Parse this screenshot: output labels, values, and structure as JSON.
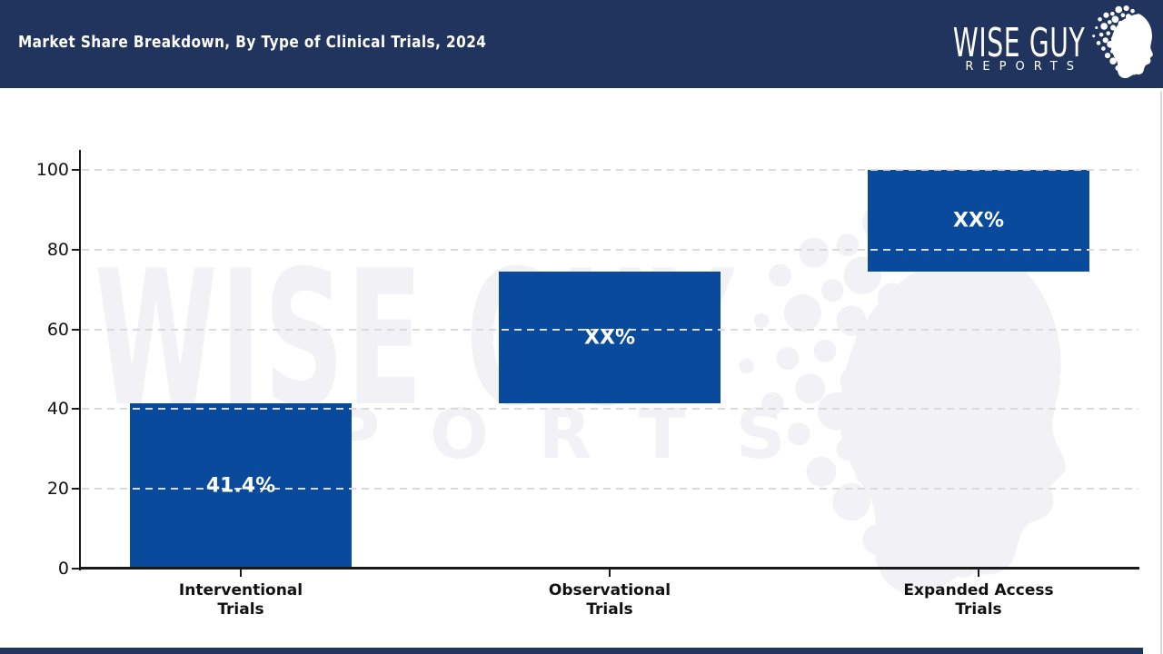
{
  "header": {
    "title": "Market Share Breakdown, By Type of Clinical Trials, 2024",
    "logo": {
      "name": "WISE GUY",
      "sub": "REPORTS"
    }
  },
  "watermark": {
    "name": "WISE GUY",
    "sub": "REPORTS"
  },
  "colors": {
    "navy": "#21345e",
    "bar": "#0a4a9c",
    "grid": "#dadada",
    "axis": "#1a1a1a",
    "watermark": "#f2f2f6",
    "bar_label": "#ffffff"
  },
  "chart_data": {
    "type": "bar",
    "variant": "waterfall",
    "title": "Market Share Breakdown, By Type of Clinical Trials, 2024",
    "categories": [
      "Interventional\nTrials",
      "Observational\nTrials",
      "Expanded Access\nTrials"
    ],
    "segments": [
      {
        "start": 0,
        "end": 41.4,
        "label": "41.4%"
      },
      {
        "start": 41.4,
        "end": 74.5,
        "label": "XX%"
      },
      {
        "start": 74.5,
        "end": 100,
        "label": "XX%"
      }
    ],
    "yticks": [
      0,
      20,
      40,
      60,
      80,
      100
    ],
    "ylim": [
      0,
      105
    ],
    "xlabel": "",
    "ylabel": "",
    "grid": "horizontal-dashed",
    "legend": "none"
  }
}
